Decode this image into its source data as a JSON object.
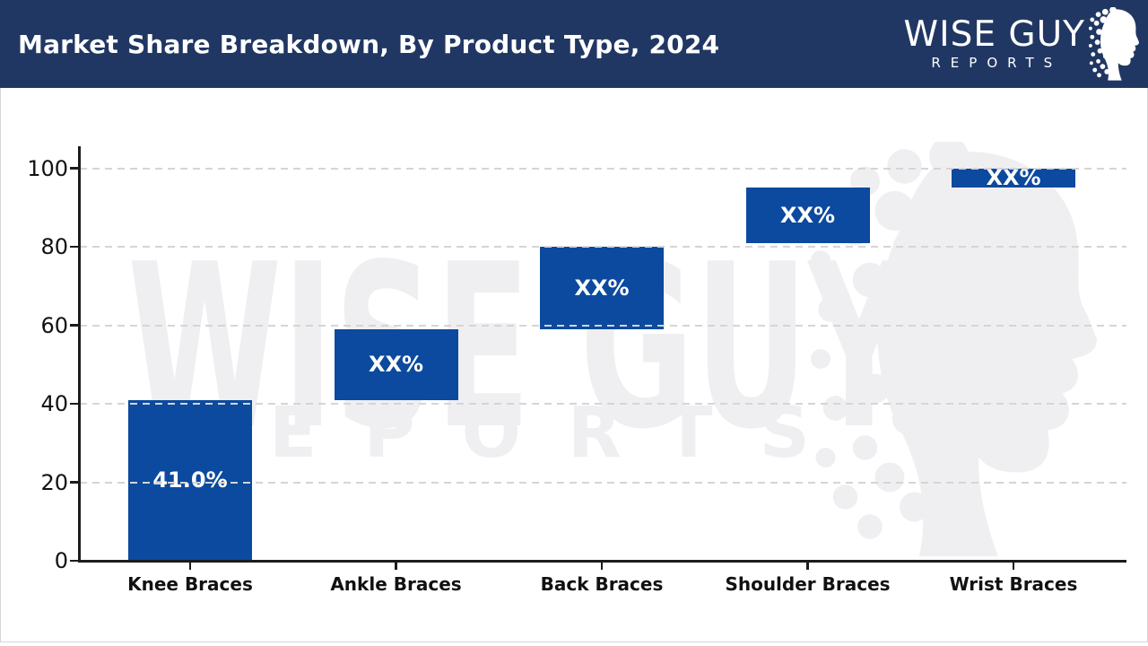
{
  "header": {
    "title": "Market Share Breakdown, By Product Type, 2024",
    "logo": {
      "name": "WISE GUY",
      "tagline": "REPORTS"
    }
  },
  "watermark": {
    "name": "WISE GUY",
    "tagline": "REPORTS"
  },
  "colors": {
    "header_bg": "#213763",
    "header_text": "#ffffff",
    "bar": "#0b4a9e",
    "bar_label": "#ffffff",
    "gridline": "#d5d5d5",
    "axis": "#1c1c1c",
    "tick_text": "#111111",
    "watermark": "#efeff2",
    "frame_border": "#d6d6d6"
  },
  "chart_data": {
    "type": "bar",
    "subtype": "waterfall",
    "title": "Market Share Breakdown, By Product Type, 2024",
    "categories": [
      "Knee Braces",
      "Ankle Braces",
      "Back Braces",
      "Shoulder Braces",
      "Wrist Braces"
    ],
    "segments": [
      {
        "category": "Knee Braces",
        "start": 0,
        "end": 41,
        "value_label": "41.0%"
      },
      {
        "category": "Ankle Braces",
        "start": 41,
        "end": 59,
        "value_label": "XX%"
      },
      {
        "category": "Back Braces",
        "start": 59,
        "end": 80,
        "value_label": "XX%"
      },
      {
        "category": "Shoulder Braces",
        "start": 81,
        "end": 95,
        "value_label": "XX%"
      },
      {
        "category": "Wrist Braces",
        "start": 95,
        "end": 100,
        "value_label": "XX%"
      }
    ],
    "xlabel": "",
    "ylabel": "",
    "ylim": [
      0,
      105
    ],
    "yticks": [
      0,
      20,
      40,
      60,
      80,
      100
    ],
    "grid": "horizontal-dashed",
    "legend": null
  }
}
